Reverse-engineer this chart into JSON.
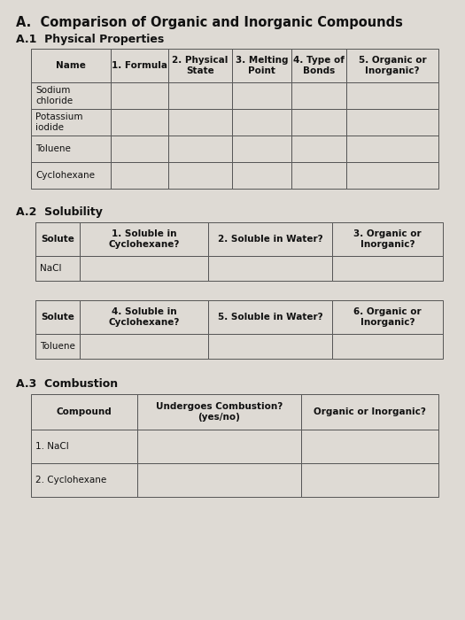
{
  "title": "A.  Comparison of Organic and Inorganic Compounds",
  "bg_color": "#dedad4",
  "title_fontsize": 10.5,
  "section_fontsize": 9,
  "table_fontsize": 7.5,
  "section_a1_label": "A.1  Physical Properties",
  "a1_headers": [
    "Name",
    "1. Formula",
    "2. Physical\nState",
    "3. Melting\nPoint",
    "4. Type of\nBonds",
    "5. Organic or\nInorganic?"
  ],
  "a1_rows": [
    "Sodium\nchloride",
    "Potassium\niodide",
    "Toluene",
    "Cyclohexane"
  ],
  "section_a2_label": "A.2  Solubility",
  "a2_table1_headers": [
    "Solute",
    "1. Soluble in\nCyclohexane?",
    "2. Soluble in Water?",
    "3. Organic or\nInorganic?"
  ],
  "a2_table1_rows": [
    "NaCl"
  ],
  "a2_table2_headers": [
    "Solute",
    "4. Soluble in\nCyclohexane?",
    "5. Soluble in Water?",
    "6. Organic or\nInorganic?"
  ],
  "a2_table2_rows": [
    "Toluene"
  ],
  "section_a3_label": "A.3  Combustion",
  "a3_headers": [
    "Compound",
    "Undergoes Combustion?\n(yes/no)",
    "Organic or Inorganic?"
  ],
  "a3_rows": [
    "1. NaCl",
    "2. Cyclohexane"
  ]
}
